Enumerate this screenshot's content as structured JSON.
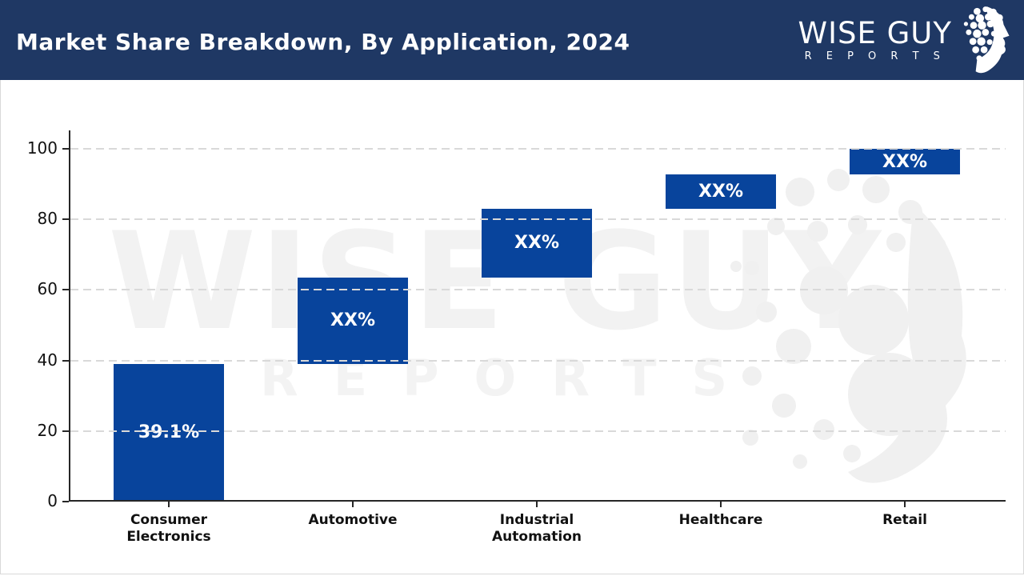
{
  "header": {
    "title": "Market Share Breakdown, By Application, 2024",
    "logo": {
      "line1": "WISE GUY",
      "line2": "R E P O R T S"
    }
  },
  "watermark": {
    "line1": "WISE GUY",
    "line2": "REPORTS"
  },
  "chart_data": {
    "type": "bar",
    "subtype": "waterfall",
    "title": "Market Share Breakdown, By Application, 2024",
    "categories": [
      "Consumer\nElectronics",
      "Automotive",
      "Industrial\nAutomation",
      "Healthcare",
      "Retail"
    ],
    "segments": [
      {
        "category": "Consumer Electronics",
        "start": 0,
        "end": 39.1,
        "label": "39.1%"
      },
      {
        "category": "Automotive",
        "start": 39.1,
        "end": 63.5,
        "label": "XX%"
      },
      {
        "category": "Industrial Automation",
        "start": 63.5,
        "end": 83.0,
        "label": "XX%"
      },
      {
        "category": "Healthcare",
        "start": 83.0,
        "end": 92.7,
        "label": "XX%"
      },
      {
        "category": "Retail",
        "start": 92.7,
        "end": 100.0,
        "label": "XX%"
      }
    ],
    "xlabel": "",
    "ylabel": "",
    "ylim": [
      0,
      105
    ],
    "yticks": [
      0,
      20,
      40,
      60,
      80,
      100
    ],
    "grid": "horizontal dashed, drawn above bars",
    "legend": "none",
    "bar_color": "#08449c",
    "bar_label_color": "#ffffff",
    "axis_color": "#262626",
    "header_bg": "#1f3864"
  }
}
